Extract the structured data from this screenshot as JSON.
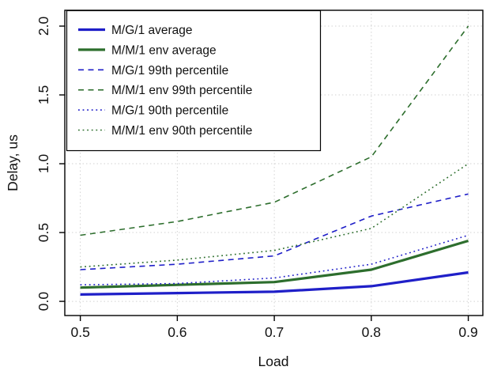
{
  "figure": {
    "title": ""
  },
  "colors": {
    "blue": "#1f1fc8",
    "green": "#2d6e2d",
    "grid": "#d2d2d2",
    "axis": "#000000",
    "background": "#ffffff",
    "legend_border": "#000000"
  },
  "chart_data": {
    "type": "line",
    "title": "",
    "xlabel": "Load",
    "ylabel": "Delay, us",
    "x": [
      0.5,
      0.6,
      0.7,
      0.8,
      0.9
    ],
    "x_tick_values": [
      0.5,
      0.6,
      0.7,
      0.8,
      0.9
    ],
    "x_tick_labels": [
      "0.5",
      "0.6",
      "0.7",
      "0.8",
      "0.9"
    ],
    "y_tick_values": [
      0.0,
      0.5,
      1.0,
      1.5,
      2.0
    ],
    "y_tick_labels": [
      "0.0",
      "0.5",
      "1.0",
      "1.5",
      "2.0"
    ],
    "xlim": [
      0.484,
      0.915
    ],
    "ylim": [
      -0.103,
      2.115
    ],
    "grid": "dotted light-gray at all ticks",
    "legend_position": "top-left",
    "series": [
      {
        "name": "M/G/1 average",
        "color": "#1f1fc8",
        "style": "solid",
        "width": 3.2,
        "values": [
          0.05,
          0.06,
          0.07,
          0.11,
          0.21
        ]
      },
      {
        "name": "M/M/1 env average",
        "color": "#2d6e2d",
        "style": "solid",
        "width": 3.2,
        "values": [
          0.1,
          0.12,
          0.14,
          0.23,
          0.44
        ]
      },
      {
        "name": "M/G/1 99th percentile",
        "color": "#1f1fc8",
        "style": "dashed",
        "width": 1.6,
        "values": [
          0.23,
          0.27,
          0.33,
          0.62,
          0.78
        ]
      },
      {
        "name": "M/M/1 env 99th percentile",
        "color": "#2d6e2d",
        "style": "dashed",
        "width": 1.6,
        "values": [
          0.48,
          0.58,
          0.72,
          1.05,
          2.0
        ]
      },
      {
        "name": "M/G/1 90th percentile",
        "color": "#1f1fc8",
        "style": "dotted",
        "width": 1.6,
        "values": [
          0.12,
          0.13,
          0.17,
          0.27,
          0.48
        ]
      },
      {
        "name": "M/M/1 env 90th percentile",
        "color": "#2d6e2d",
        "style": "dotted",
        "width": 1.6,
        "values": [
          0.25,
          0.3,
          0.37,
          0.53,
          1.0
        ]
      }
    ]
  }
}
